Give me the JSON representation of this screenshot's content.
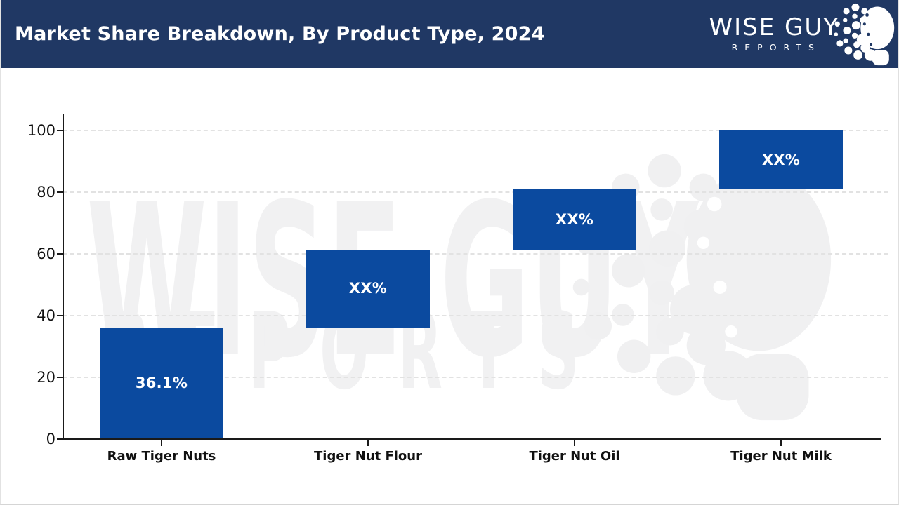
{
  "header": {
    "title": "Market Share Breakdown, By Product Type, 2024",
    "logo": {
      "line1": "WISE GUY",
      "line2": "REPORTS"
    }
  },
  "watermark": {
    "line1": "WISE GUY",
    "line2": "REPORTS"
  },
  "colors": {
    "header_bg": "#203864",
    "bar": "#0b4a9f",
    "bar_label": "#ffffff",
    "grid": "#e2e2e2",
    "axis": "#1a1a1a",
    "watermark": "#f1f1f2"
  },
  "chart_data": {
    "type": "bar",
    "subtype": "waterfall",
    "title": "Market Share Breakdown, By Product Type, 2024",
    "xlabel": "",
    "ylabel": "",
    "ylim": [
      0,
      100
    ],
    "yticks": [
      0,
      20,
      40,
      60,
      80,
      100
    ],
    "grid": "horizontal-dashed",
    "legend": "none",
    "categories": [
      "Raw Tiger Nuts",
      "Tiger Nut Flour",
      "Tiger Nut Oil",
      "Tiger Nut Milk"
    ],
    "segments": [
      {
        "category": "Raw Tiger Nuts",
        "start": 0,
        "end": 36.1,
        "displayed_label": "36.1%"
      },
      {
        "category": "Tiger Nut Flour",
        "start": 36.1,
        "end": 61.3,
        "displayed_label": "XX%"
      },
      {
        "category": "Tiger Nut Oil",
        "start": 61.3,
        "end": 80.8,
        "displayed_label": "XX%"
      },
      {
        "category": "Tiger Nut Milk",
        "start": 80.8,
        "end": 100,
        "displayed_label": "XX%"
      }
    ]
  }
}
